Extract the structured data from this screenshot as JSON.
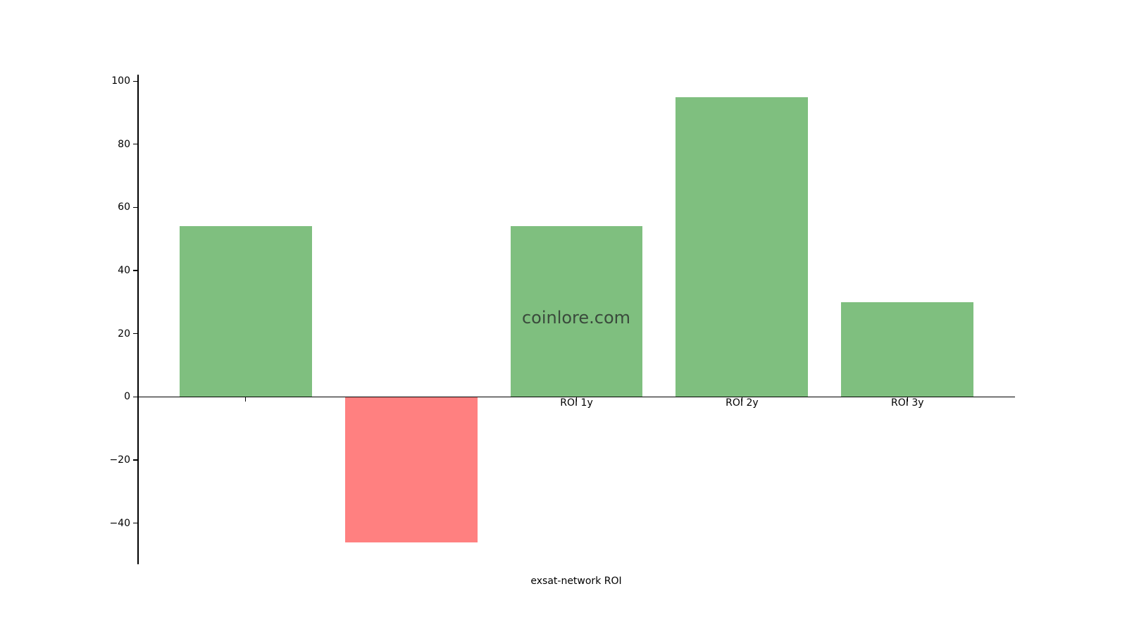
{
  "chart_data": {
    "type": "bar",
    "title": "",
    "xlabel": "exsat-network ROI",
    "ylabel": "",
    "categories": [
      "",
      "",
      "ROI 1y",
      "ROI 2y",
      "ROI 3y"
    ],
    "values": [
      54,
      -46,
      54,
      95,
      30
    ],
    "bar_colors": [
      "#7FBF7F",
      "#FF8080",
      "#7FBF7F",
      "#7FBF7F",
      "#7FBF7F"
    ],
    "bar_width": 0.8,
    "yticks": [
      100,
      80,
      60,
      40,
      20,
      0,
      -20,
      -40
    ],
    "ytick_labels": [
      "100",
      "80",
      "60",
      "40",
      "20",
      "0",
      "−20",
      "−40"
    ],
    "ylim": [
      -53.05,
      102.05
    ],
    "xlim": [
      -0.65,
      4.65
    ],
    "grid": false,
    "legend_position": "none",
    "watermark": "coinlore.com"
  },
  "colors": {
    "positive_bar": "#7FBF7F",
    "negative_bar": "#FF8080",
    "axis": "#000000",
    "text": "#000000",
    "watermark_text": "#3A4A3C",
    "background": "#FFFFFF"
  }
}
